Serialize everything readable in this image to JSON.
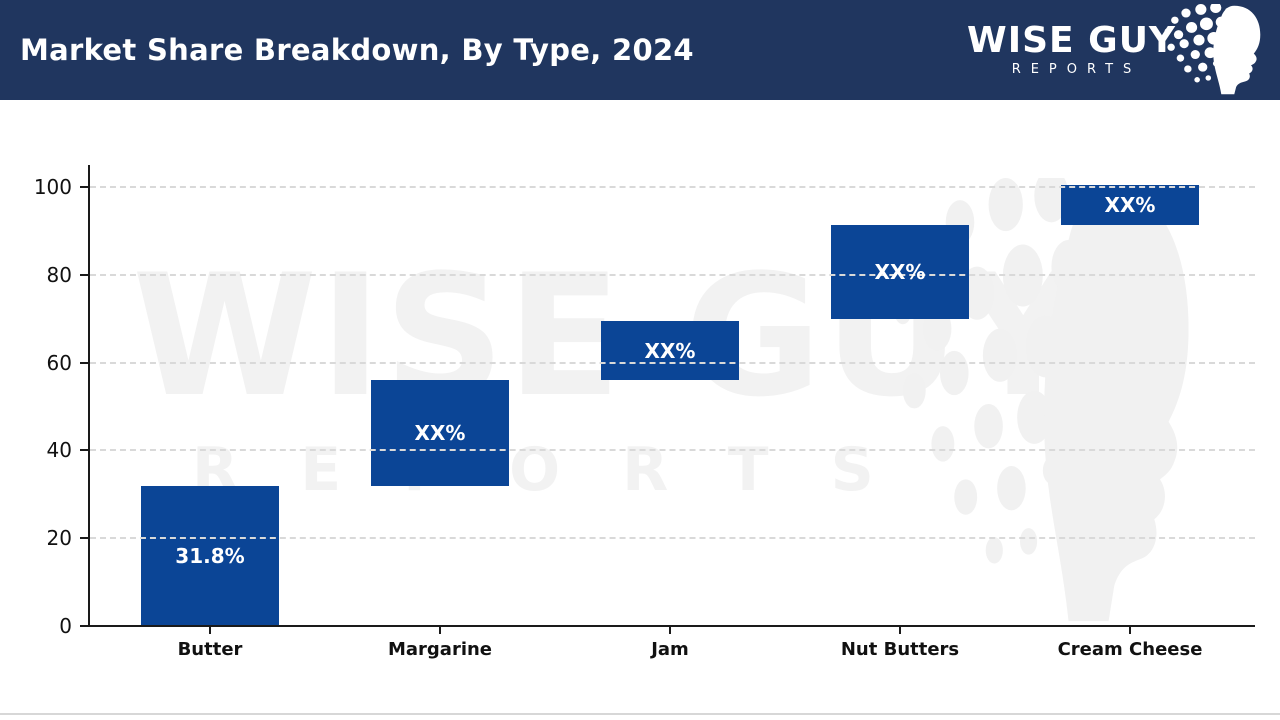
{
  "header": {
    "title": "Market Share Breakdown, By Type, 2024",
    "logo": {
      "line1": "WISE GUY",
      "line2": "REPORTS"
    }
  },
  "watermark": {
    "line1": "WISE GUY",
    "line2": "REPORTS"
  },
  "chart_data": {
    "type": "bar",
    "subtype": "waterfall",
    "title": "Market Share Breakdown, By Type, 2024",
    "categories": [
      "Butter",
      "Margarine",
      "Jam",
      "Nut Butters",
      "Cream Cheese"
    ],
    "bars": [
      {
        "category": "Butter",
        "start": 0,
        "end": 31.8,
        "label": "31.8%"
      },
      {
        "category": "Margarine",
        "start": 31.8,
        "end": 56,
        "label": "XX%"
      },
      {
        "category": "Jam",
        "start": 56,
        "end": 69.5,
        "label": "XX%"
      },
      {
        "category": "Nut Butters",
        "start": 70,
        "end": 91.3,
        "label": "XX%"
      },
      {
        "category": "Cream Cheese",
        "start": 91.3,
        "end": 100.4,
        "label": "XX%"
      }
    ],
    "xlabel": "",
    "ylabel": "",
    "ylim": [
      0,
      105
    ],
    "yticks": [
      0,
      20,
      40,
      60,
      80,
      100
    ],
    "grid": {
      "axis": "y",
      "style": "dashed"
    },
    "legend": "none",
    "colors": {
      "bar": "#0b4596",
      "bar_label": "#ffffff",
      "grid": "#d9d9d9",
      "axis": "#1a1a1a",
      "tick_label": "#111111"
    }
  },
  "colors": {
    "header_bg": "#20365f",
    "page_bg": "#ffffff",
    "watermark": "#f1f1f1"
  }
}
